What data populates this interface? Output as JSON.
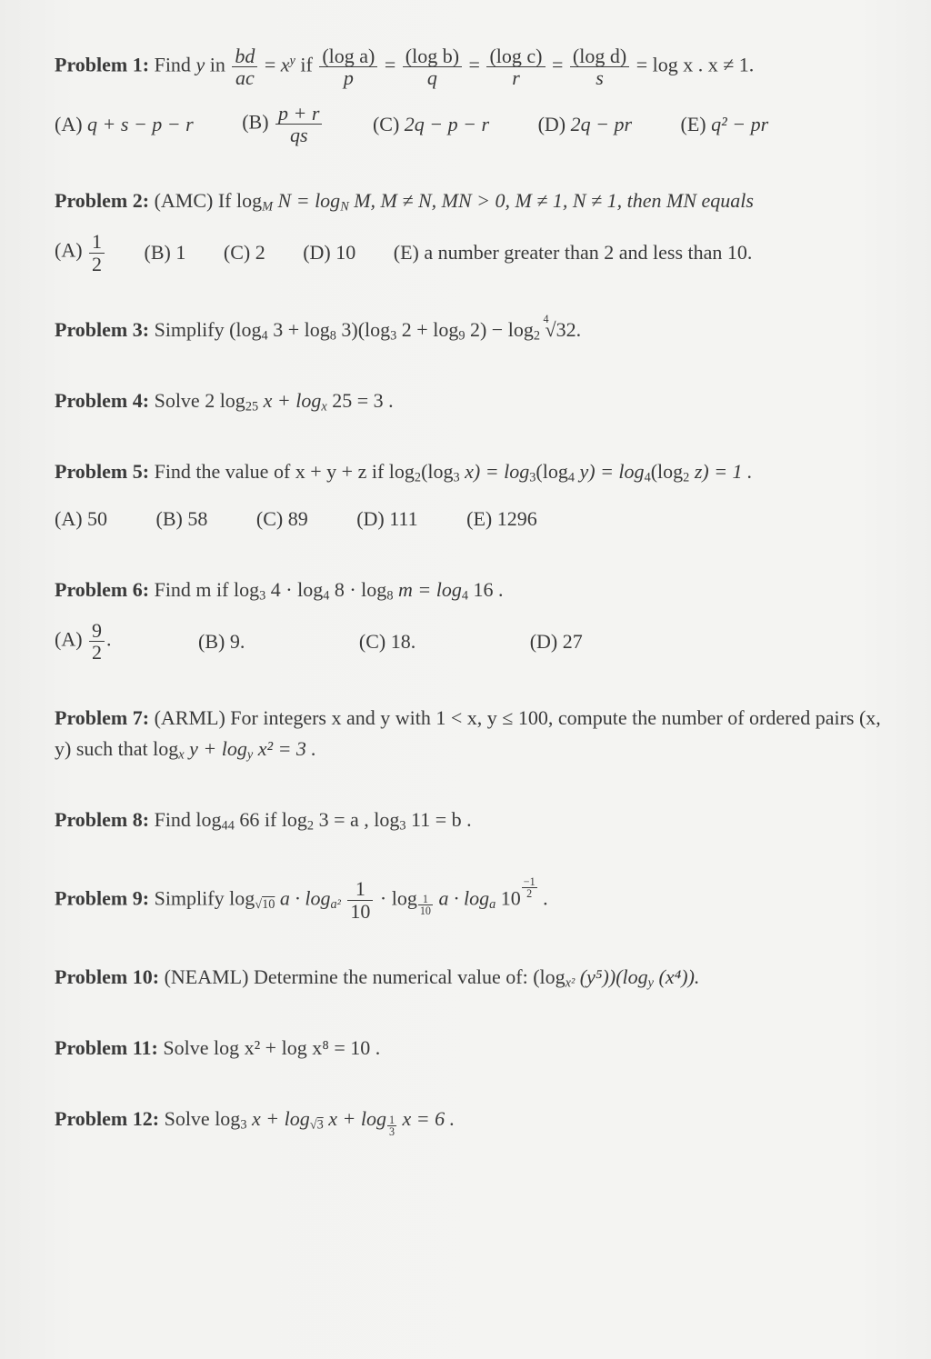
{
  "p1": {
    "label": "Problem 1:",
    "stem_a": "Find ",
    "var_y": "y",
    "stem_b": " in ",
    "frac1_num": "bd",
    "frac1_den": "ac",
    "eq1": " = ",
    "xy": "x",
    "y_sup": "y",
    "stem_c": " if ",
    "fa_num": "(log a)",
    "fa_den": "p",
    "fb_num": "(log b)",
    "fb_den": "q",
    "fc_num": "(log c)",
    "fc_den": "r",
    "fd_num": "(log d)",
    "fd_den": "s",
    "eq": " = ",
    "tail": " = log x . x ≠ 1.",
    "A_l": "(A) ",
    "A": "q + s − p − r",
    "B_l": "(B) ",
    "B_num": "p + r",
    "B_den": "qs",
    "C_l": "(C) ",
    "C": "2q − p − r",
    "D_l": "(D) ",
    "D": "2q − pr",
    "E_l": "(E) ",
    "E": "q² − pr"
  },
  "p2": {
    "label": "Problem 2:",
    "stem": " (AMC) If  log",
    "sub1": "M",
    "mid1": " N = log",
    "sub2": "N",
    "mid2": " M,  M ≠ N, MN > 0, M ≠ 1, N ≠ 1, then MN equals",
    "A_l": "(A) ",
    "A_num": "1",
    "A_den": "2",
    "B": "(B) 1",
    "C": "(C) 2",
    "D": "(D) 10",
    "E": "(E) a number greater than 2 and less than 10."
  },
  "p3": {
    "label": "Problem 3:",
    "stem_a": " Simplify  (log",
    "s1": "4",
    "m1": " 3 + log",
    "s2": "8",
    "m2": " 3)(log",
    "s3": "3",
    "m3": " 2 + log",
    "s4": "9",
    "m4": " 2) − log",
    "s5": "2",
    "m5": " ",
    "rootexp": "4",
    "rad": "√32",
    "tail": "."
  },
  "p4": {
    "label": "Problem 4:",
    "stem_a": " Solve  2 log",
    "s1": "25",
    "m1": " x + log",
    "s2": "x",
    "m2": " 25 = 3 ."
  },
  "p5": {
    "label": "Problem 5:",
    "stem_a": "  Find the value of x + y + z if  log",
    "s1": "2",
    "m1": "(log",
    "s2": "3",
    "m2": " x) = log",
    "s3": "3",
    "m3": "(log",
    "s4": "4",
    "m4": " y)  = log",
    "s5": "4",
    "m5": "(log",
    "s6": "2",
    "m6": " z) = 1 .",
    "A": "(A) 50",
    "B": "(B) 58",
    "C": "(C) 89",
    "D": "(D) 111",
    "E": "(E) 1296"
  },
  "p6": {
    "label": "Problem 6:",
    "stem_a": " Find m if  log",
    "s1": "3",
    "m1": " 4 · log",
    "s2": "4",
    "m2": " 8 · log",
    "s3": "8",
    "m3": " m = log",
    "s4": "4",
    "m4": " 16 .",
    "A_l": "(A) ",
    "A_num": "9",
    "A_den": "2",
    "A_tail": ".",
    "B": "(B) 9.",
    "C": "(C) 18.",
    "D": "(D) 27"
  },
  "p7": {
    "label": "Problem 7:",
    "stem_a": " (ARML) For integers x and y with 1 < x, y ≤ 100, compute the number of ordered pairs (x, y) such that  log",
    "s1": "x",
    "m1": " y + log",
    "s2": "y",
    "m2": " x² = 3 ."
  },
  "p8": {
    "label": "Problem 8:",
    "stem_a": " Find  log",
    "s1": "44",
    "m1": " 66  if  log",
    "s2": "2",
    "m2": " 3 = a ,  log",
    "s3": "3",
    "m3": " 11 = b ."
  },
  "p9": {
    "label": "Problem 9:",
    "stem_a": " Simplify  log",
    "sub1_pre": "√",
    "sub1": "10",
    "m1": " a · log",
    "sub2": "a²",
    "m2": " ",
    "f_num": "1",
    "f_den": "10",
    "m3": " · log",
    "sub3_num": "1",
    "sub3_den": "10",
    "m4": " a · log",
    "sub4": "a",
    "m5": " 10",
    "exp_num": "1",
    "exp_den": "2",
    "exp_sign": "−",
    "tail": " ."
  },
  "p10": {
    "label": "Problem 10:",
    "stem_a": " (NEAML) Determine the numerical value of:  (log",
    "s1": "x²",
    "m1": " (y⁵))(log",
    "s2": "y",
    "m2": " (x⁴))."
  },
  "p11": {
    "label": "Problem 11:",
    "stem": " Solve  log x² + log x⁸ = 10 ."
  },
  "p12": {
    "label": "Problem 12:",
    "stem_a": " Solve  log",
    "s1": "3",
    "m1": " x + log",
    "sub2_pre": "√",
    "sub2": "3",
    "m2": " x + log",
    "sub3_num": "1",
    "sub3_den": "3",
    "m3": " x = 6 ."
  }
}
